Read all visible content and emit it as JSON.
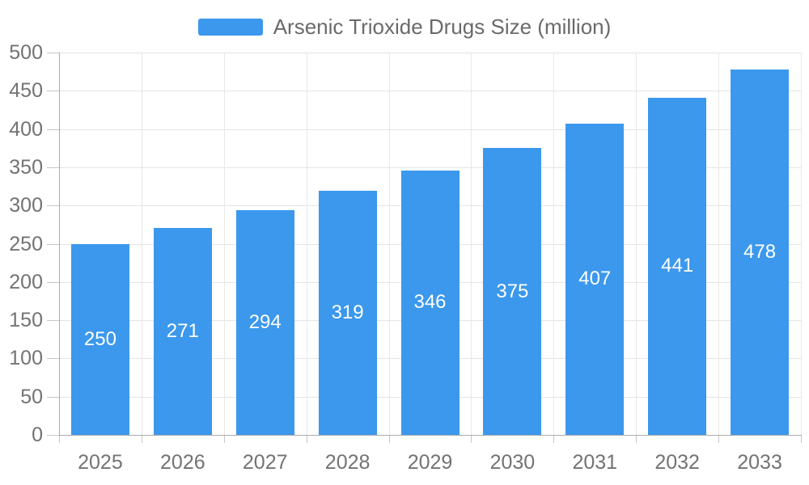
{
  "legend": {
    "label": "Arsenic Trioxide Drugs Size (million)"
  },
  "colors": {
    "bar": "#3b98ec",
    "axis_line": "#ababab",
    "tick_mark": "#c6c6c6",
    "gridline_h": "#e4e4e4",
    "gridline_v": "#e8e8e8",
    "tick_label_text": "#737373",
    "legend_text": "#6a6a6a",
    "value_label_text": "#ffffff",
    "background": "#ffffff"
  },
  "chart_data": {
    "type": "bar",
    "title": "Arsenic Trioxide Drugs Size (million)",
    "categories": [
      "2025",
      "2026",
      "2027",
      "2028",
      "2029",
      "2030",
      "2031",
      "2032",
      "2033"
    ],
    "series": [
      {
        "name": "Arsenic Trioxide Drugs Size (million)",
        "values": [
          250,
          271,
          294,
          319,
          346,
          375,
          407,
          441,
          478
        ]
      }
    ],
    "values": [
      250,
      271,
      294,
      319,
      346,
      375,
      407,
      441,
      478
    ],
    "bar_labels": [
      250,
      271,
      294,
      319,
      346,
      375,
      407,
      441,
      478
    ],
    "xlabel": "",
    "ylabel": "",
    "ylim": [
      0,
      500
    ],
    "yticks": [
      0,
      50,
      100,
      150,
      200,
      250,
      300,
      350,
      400,
      450,
      500
    ],
    "grid": true,
    "legend_position": "top"
  }
}
